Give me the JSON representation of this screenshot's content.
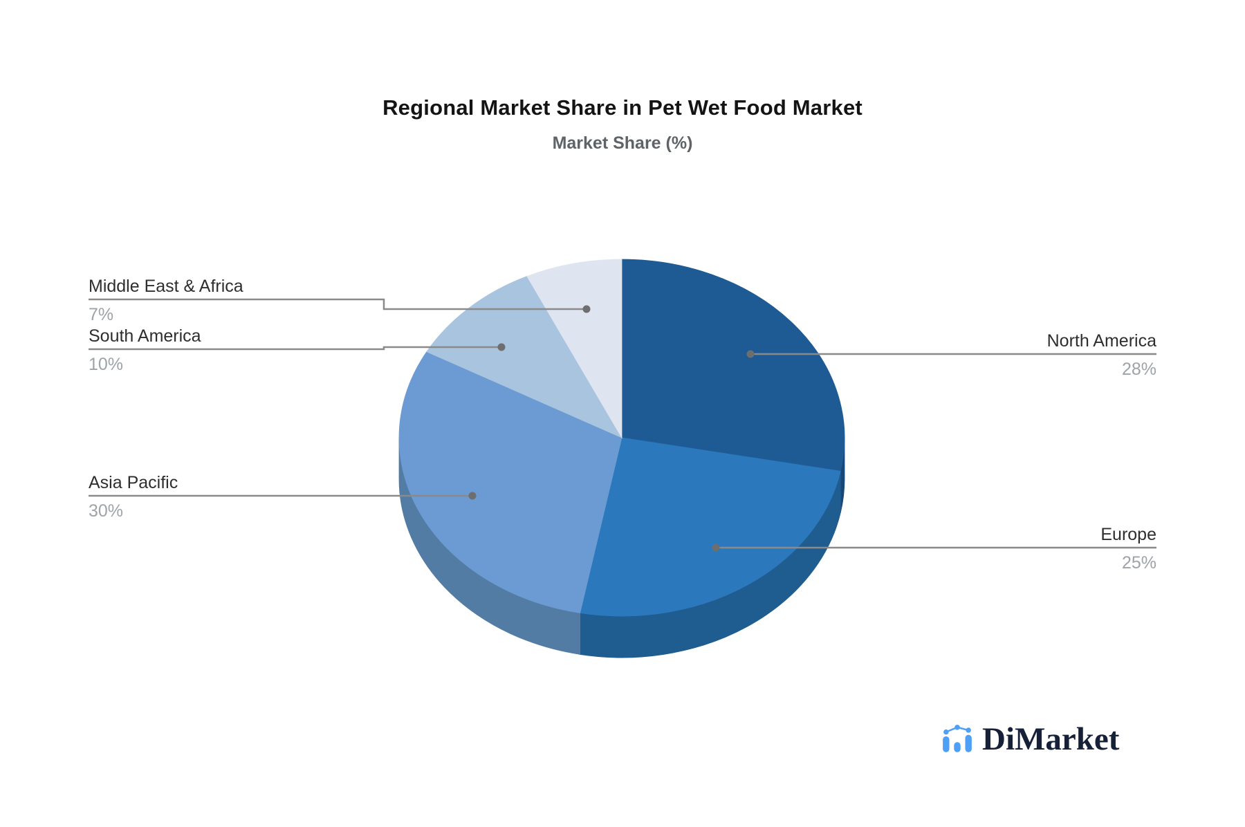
{
  "header": {
    "title": "Regional Market Share in Pet Wet Food Market",
    "subtitle": "Market Share (%)"
  },
  "chart_data": {
    "type": "pie",
    "title": "Regional Market Share in Pet Wet Food Market",
    "subtitle": "Market Share (%)",
    "units": "%",
    "style": "3d-pie",
    "start_angle_deg": 0,
    "direction": "clockwise",
    "legend_position": "callout-labels",
    "slices": [
      {
        "label": "North America",
        "value": 28,
        "pct_label": "28%",
        "color": "#1E5A94",
        "side_color": "#174878"
      },
      {
        "label": "Europe",
        "value": 25,
        "pct_label": "25%",
        "color": "#2C78BC",
        "side_color": "#1F5C90"
      },
      {
        "label": "Asia Pacific",
        "value": 30,
        "pct_label": "30%",
        "color": "#6B9BD2",
        "side_color": "#527CA4"
      },
      {
        "label": "South America",
        "value": 10,
        "pct_label": "10%",
        "color": "#A9C4DF",
        "side_color": "#84A3C2"
      },
      {
        "label": "Middle East & Africa",
        "value": 7,
        "pct_label": "7%",
        "color": "#DEE5F0",
        "side_color": "#B8C5D6"
      }
    ]
  },
  "callout_style": {
    "line_color": "#8A8A8A",
    "dot_color": "#6E6E6E",
    "label_color": "#2E2E2E",
    "value_color": "#9EA3A8"
  },
  "logo": {
    "text": "DiMarket",
    "icon": "bar-line-chart-icon",
    "text_color": "#162038",
    "icon_color": "#4DA0F6"
  }
}
